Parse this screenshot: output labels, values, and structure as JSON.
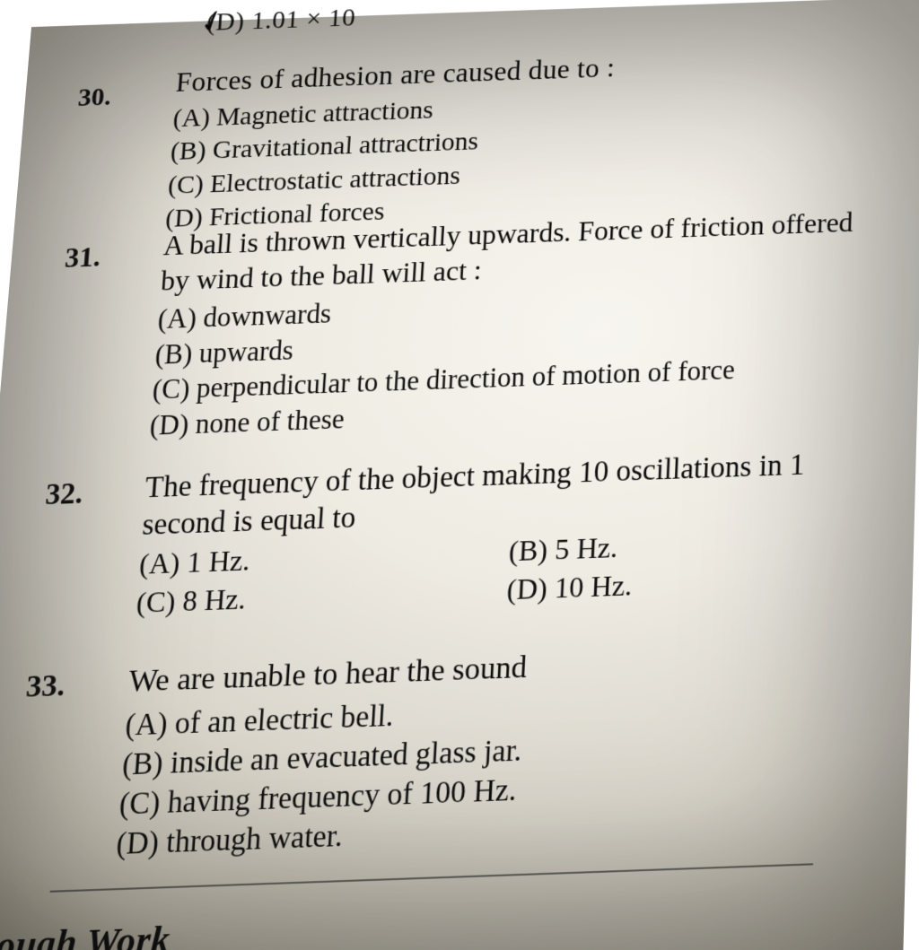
{
  "colors": {
    "text": "#1a1a1a",
    "paper_light": "#f6f4ee",
    "paper_mid": "#d9d5cb",
    "paper_dark": "#5a5648",
    "rule": "#2a2a2a"
  },
  "typography": {
    "family": "Georgia / Times New Roman (serif)",
    "base_size_pt": 22,
    "weight": 500
  },
  "prev_option": {
    "label": "(D) 1.01 × 10",
    "ticked": true
  },
  "questions": [
    {
      "number": "30.",
      "stem": "Forces of adhesion are caused due to :",
      "options": [
        "(A) Magnetic attractions",
        "(B) Gravitational attractrions",
        "(C) Electrostatic attractions",
        "(D) Frictional forces"
      ],
      "layout": "single"
    },
    {
      "number": "31.",
      "stem": "A ball is thrown vertically upwards. Force of friction offered by wind to the ball will act :",
      "options": [
        "(A) downwards",
        "(B) upwards",
        "(C) perpendicular to the direction of motion of force",
        "(D) none of these"
      ],
      "layout": "single"
    },
    {
      "number": "32.",
      "stem": "The frequency of the object making 10 oscillations in 1 second is equal to",
      "options_grid": {
        "r1c1": "(A) 1 Hz.",
        "r1c2": "(B) 5 Hz.",
        "r2c1": "(C) 8 Hz.",
        "r2c2": "(D) 10 Hz."
      },
      "layout": "two-column"
    },
    {
      "number": "33.",
      "stem": "We are unable to hear the sound",
      "options": [
        "(A) of an electric bell.",
        "(B) inside an evacuated glass jar.",
        "(C) having frequency of 100 Hz.",
        "(D) through water."
      ],
      "layout": "single"
    }
  ],
  "footer": {
    "rough_work": "Rough Work"
  }
}
